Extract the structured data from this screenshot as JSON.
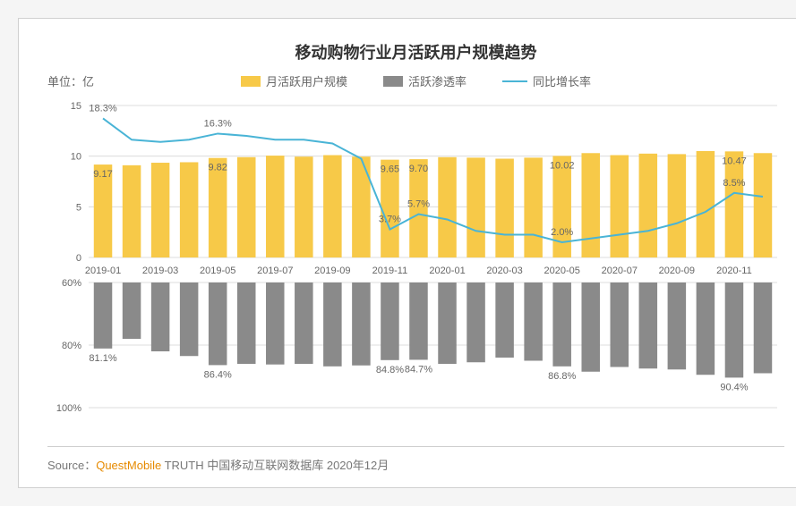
{
  "title": "移动购物行业月活跃用户规模趋势",
  "unit_label": "单位：亿",
  "legend": {
    "bars_top": "月活跃用户规模",
    "bars_bottom": "活跃渗透率",
    "line": "同比增长率"
  },
  "colors": {
    "bar_top": "#f7c948",
    "bar_bottom": "#8a8a8a",
    "line": "#49b4d6",
    "grid": "#dcdcdc",
    "text": "#666666",
    "bg": "#ffffff",
    "border": "#d0d0d0"
  },
  "top_chart": {
    "ylim": [
      0,
      15
    ],
    "ytick_step": 5,
    "bars": [
      9.17,
      9.1,
      9.35,
      9.4,
      9.82,
      9.9,
      10.05,
      9.95,
      10.1,
      9.95,
      9.65,
      9.7,
      9.9,
      9.85,
      9.75,
      9.85,
      10.02,
      10.3,
      10.1,
      10.25,
      10.2,
      10.5,
      10.47,
      10.3
    ],
    "line_y2": [
      18.3,
      15.5,
      15.2,
      15.5,
      16.3,
      16.0,
      15.5,
      15.5,
      15.0,
      13.0,
      3.7,
      5.7,
      5.0,
      3.5,
      3.0,
      3.0,
      2.0,
      2.5,
      3.0,
      3.5,
      4.5,
      6.0,
      8.5,
      8.0
    ],
    "y2lim": [
      0,
      20
    ],
    "callouts": [
      {
        "i": 0,
        "text": "9.17",
        "kind": "bar"
      },
      {
        "i": 4,
        "text": "9.82",
        "kind": "bar"
      },
      {
        "i": 10,
        "text": "9.65",
        "kind": "bar"
      },
      {
        "i": 11,
        "text": "9.70",
        "kind": "bar"
      },
      {
        "i": 16,
        "text": "10.02",
        "kind": "bar"
      },
      {
        "i": 22,
        "text": "10.47",
        "kind": "bar"
      },
      {
        "i": 0,
        "text": "18.3%",
        "kind": "line"
      },
      {
        "i": 4,
        "text": "16.3%",
        "kind": "line"
      },
      {
        "i": 10,
        "text": "3.7%",
        "kind": "line"
      },
      {
        "i": 11,
        "text": "5.7%",
        "kind": "line"
      },
      {
        "i": 16,
        "text": "2.0%",
        "kind": "line"
      },
      {
        "i": 22,
        "text": "8.5%",
        "kind": "line"
      }
    ]
  },
  "bottom_chart": {
    "ylim_top_pct": 60,
    "ylim_bot_pct": 100,
    "ytick_step": 20,
    "bars_pct": [
      81.1,
      78.0,
      82.0,
      83.5,
      86.4,
      86.0,
      86.2,
      86.0,
      86.8,
      86.5,
      84.8,
      84.7,
      86.0,
      85.5,
      84.0,
      85.0,
      86.8,
      88.5,
      87.0,
      87.5,
      87.8,
      89.5,
      90.4,
      89.0
    ],
    "callouts": [
      {
        "i": 0,
        "text": "81.1%"
      },
      {
        "i": 4,
        "text": "86.4%"
      },
      {
        "i": 10,
        "text": "84.8%"
      },
      {
        "i": 11,
        "text": "84.7%"
      },
      {
        "i": 16,
        "text": "86.8%"
      },
      {
        "i": 22,
        "text": "90.4%"
      }
    ]
  },
  "x_labels": [
    "2019-01",
    "",
    "2019-03",
    "",
    "2019-05",
    "",
    "2019-07",
    "",
    "2019-09",
    "",
    "2019-11",
    "",
    "2020-01",
    "",
    "2020-03",
    "",
    "2020-05",
    "",
    "2020-07",
    "",
    "2020-09",
    "",
    "2020-11",
    ""
  ],
  "source": {
    "prefix": "Source：",
    "brand": "QuestMobile",
    "rest": " TRUTH 中国移动互联网数据库 2020年12月"
  }
}
